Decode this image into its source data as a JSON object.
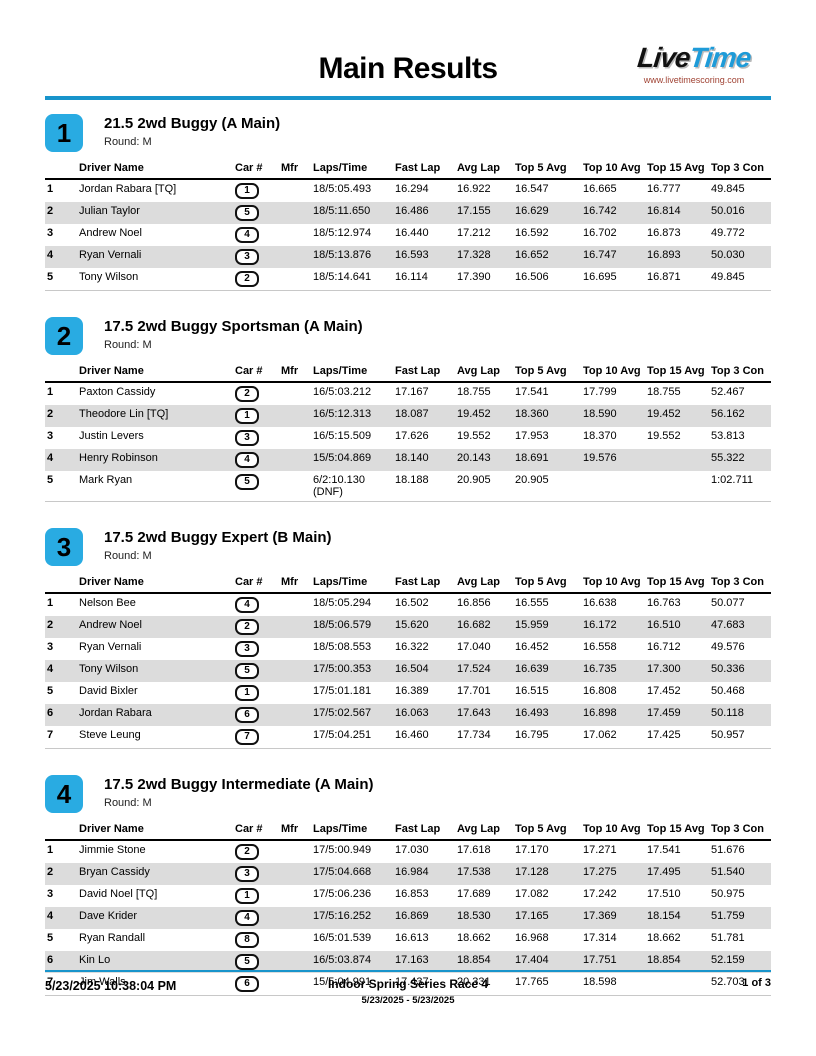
{
  "page": {
    "title": "Main Results",
    "logo": {
      "live": "Live",
      "time": "Time",
      "url": "www.livetimescoring.com"
    },
    "footer": {
      "timestamp": "5/23/2025 10:38:04 PM",
      "event": "Indoor Spring Series Race 4",
      "dates": "5/23/2025 - 5/23/2025",
      "page_number": "1 of 3"
    },
    "colors": {
      "accent_blue": "#1894CB",
      "badge_cyan": "#29ABE2",
      "row_stripe": "#DCDCDC",
      "logo_blue": "#1E9BD8",
      "logo_url_red": "#A04334"
    }
  },
  "columns": [
    "Driver Name",
    "Car #",
    "Mfr",
    "Laps/Time",
    "Fast Lap",
    "Avg Lap",
    "Top 5 Avg",
    "Top 10 Avg",
    "Top 15 Avg",
    "Top 3 Con"
  ],
  "sections": [
    {
      "number": "1",
      "title": "21.5 2wd Buggy (A Main)",
      "round": "Round: M",
      "rows": [
        {
          "pos": "1",
          "driver": "Jordan Rabara [TQ]",
          "car": "1",
          "mfr": "",
          "laps": "18/5:05.493",
          "note": "",
          "fast": "16.294",
          "avg": "16.922",
          "top5": "16.547",
          "top10": "16.665",
          "top15": "16.777",
          "top3": "49.845"
        },
        {
          "pos": "2",
          "driver": "Julian Taylor",
          "car": "5",
          "mfr": "",
          "laps": "18/5:11.650",
          "note": "",
          "fast": "16.486",
          "avg": "17.155",
          "top5": "16.629",
          "top10": "16.742",
          "top15": "16.814",
          "top3": "50.016"
        },
        {
          "pos": "3",
          "driver": "Andrew Noel",
          "car": "4",
          "mfr": "",
          "laps": "18/5:12.974",
          "note": "",
          "fast": "16.440",
          "avg": "17.212",
          "top5": "16.592",
          "top10": "16.702",
          "top15": "16.873",
          "top3": "49.772"
        },
        {
          "pos": "4",
          "driver": "Ryan Vernali",
          "car": "3",
          "mfr": "",
          "laps": "18/5:13.876",
          "note": "",
          "fast": "16.593",
          "avg": "17.328",
          "top5": "16.652",
          "top10": "16.747",
          "top15": "16.893",
          "top3": "50.030"
        },
        {
          "pos": "5",
          "driver": "Tony Wilson",
          "car": "2",
          "mfr": "",
          "laps": "18/5:14.641",
          "note": "",
          "fast": "16.114",
          "avg": "17.390",
          "top5": "16.506",
          "top10": "16.695",
          "top15": "16.871",
          "top3": "49.845"
        }
      ]
    },
    {
      "number": "2",
      "title": "17.5 2wd Buggy Sportsman  (A Main)",
      "round": "Round: M",
      "rows": [
        {
          "pos": "1",
          "driver": "Paxton Cassidy",
          "car": "2",
          "mfr": "",
          "laps": "16/5:03.212",
          "note": "",
          "fast": "17.167",
          "avg": "18.755",
          "top5": "17.541",
          "top10": "17.799",
          "top15": "18.755",
          "top3": "52.467"
        },
        {
          "pos": "2",
          "driver": "Theodore Lin [TQ]",
          "car": "1",
          "mfr": "",
          "laps": "16/5:12.313",
          "note": "",
          "fast": "18.087",
          "avg": "19.452",
          "top5": "18.360",
          "top10": "18.590",
          "top15": "19.452",
          "top3": "56.162"
        },
        {
          "pos": "3",
          "driver": "Justin Levers",
          "car": "3",
          "mfr": "",
          "laps": "16/5:15.509",
          "note": "",
          "fast": "17.626",
          "avg": "19.552",
          "top5": "17.953",
          "top10": "18.370",
          "top15": "19.552",
          "top3": "53.813"
        },
        {
          "pos": "4",
          "driver": "Henry Robinson",
          "car": "4",
          "mfr": "",
          "laps": "15/5:04.869",
          "note": "",
          "fast": "18.140",
          "avg": "20.143",
          "top5": "18.691",
          "top10": "19.576",
          "top15": "",
          "top3": "55.322"
        },
        {
          "pos": "5",
          "driver": "Mark Ryan",
          "car": "5",
          "mfr": "",
          "laps": "6/2:10.130",
          "note": "(DNF)",
          "fast": "18.188",
          "avg": "20.905",
          "top5": "20.905",
          "top10": "",
          "top15": "",
          "top3": "1:02.711"
        }
      ]
    },
    {
      "number": "3",
      "title": "17.5 2wd Buggy Expert (B Main)",
      "round": "Round: M",
      "rows": [
        {
          "pos": "1",
          "driver": "Nelson Bee",
          "car": "4",
          "mfr": "",
          "laps": "18/5:05.294",
          "note": "",
          "fast": "16.502",
          "avg": "16.856",
          "top5": "16.555",
          "top10": "16.638",
          "top15": "16.763",
          "top3": "50.077"
        },
        {
          "pos": "2",
          "driver": "Andrew Noel",
          "car": "2",
          "mfr": "",
          "laps": "18/5:06.579",
          "note": "",
          "fast": "15.620",
          "avg": "16.682",
          "top5": "15.959",
          "top10": "16.172",
          "top15": "16.510",
          "top3": "47.683"
        },
        {
          "pos": "3",
          "driver": "Ryan Vernali",
          "car": "3",
          "mfr": "",
          "laps": "18/5:08.553",
          "note": "",
          "fast": "16.322",
          "avg": "17.040",
          "top5": "16.452",
          "top10": "16.558",
          "top15": "16.712",
          "top3": "49.576"
        },
        {
          "pos": "4",
          "driver": "Tony Wilson",
          "car": "5",
          "mfr": "",
          "laps": "17/5:00.353",
          "note": "",
          "fast": "16.504",
          "avg": "17.524",
          "top5": "16.639",
          "top10": "16.735",
          "top15": "17.300",
          "top3": "50.336"
        },
        {
          "pos": "5",
          "driver": "David Bixler",
          "car": "1",
          "mfr": "",
          "laps": "17/5:01.181",
          "note": "",
          "fast": "16.389",
          "avg": "17.701",
          "top5": "16.515",
          "top10": "16.808",
          "top15": "17.452",
          "top3": "50.468"
        },
        {
          "pos": "6",
          "driver": "Jordan Rabara",
          "car": "6",
          "mfr": "",
          "laps": "17/5:02.567",
          "note": "",
          "fast": "16.063",
          "avg": "17.643",
          "top5": "16.493",
          "top10": "16.898",
          "top15": "17.459",
          "top3": "50.118"
        },
        {
          "pos": "7",
          "driver": "Steve Leung",
          "car": "7",
          "mfr": "",
          "laps": "17/5:04.251",
          "note": "",
          "fast": "16.460",
          "avg": "17.734",
          "top5": "16.795",
          "top10": "17.062",
          "top15": "17.425",
          "top3": "50.957"
        }
      ]
    },
    {
      "number": "4",
      "title": "17.5 2wd Buggy Intermediate (A Main)",
      "round": "Round: M",
      "rows": [
        {
          "pos": "1",
          "driver": "Jimmie Stone",
          "car": "2",
          "mfr": "",
          "laps": "17/5:00.949",
          "note": "",
          "fast": "17.030",
          "avg": "17.618",
          "top5": "17.170",
          "top10": "17.271",
          "top15": "17.541",
          "top3": "51.676"
        },
        {
          "pos": "2",
          "driver": "Bryan Cassidy",
          "car": "3",
          "mfr": "",
          "laps": "17/5:04.668",
          "note": "",
          "fast": "16.984",
          "avg": "17.538",
          "top5": "17.128",
          "top10": "17.275",
          "top15": "17.495",
          "top3": "51.540"
        },
        {
          "pos": "3",
          "driver": "David Noel [TQ]",
          "car": "1",
          "mfr": "",
          "laps": "17/5:06.236",
          "note": "",
          "fast": "16.853",
          "avg": "17.689",
          "top5": "17.082",
          "top10": "17.242",
          "top15": "17.510",
          "top3": "50.975"
        },
        {
          "pos": "4",
          "driver": "Dave Krider",
          "car": "4",
          "mfr": "",
          "laps": "17/5:16.252",
          "note": "",
          "fast": "16.869",
          "avg": "18.530",
          "top5": "17.165",
          "top10": "17.369",
          "top15": "18.154",
          "top3": "51.759"
        },
        {
          "pos": "5",
          "driver": "Ryan Randall",
          "car": "8",
          "mfr": "",
          "laps": "16/5:01.539",
          "note": "",
          "fast": "16.613",
          "avg": "18.662",
          "top5": "16.968",
          "top10": "17.314",
          "top15": "18.662",
          "top3": "51.781"
        },
        {
          "pos": "6",
          "driver": "Kin Lo",
          "car": "5",
          "mfr": "",
          "laps": "16/5:03.874",
          "note": "",
          "fast": "17.163",
          "avg": "18.854",
          "top5": "17.404",
          "top10": "17.751",
          "top15": "18.854",
          "top3": "52.159"
        },
        {
          "pos": "7",
          "driver": "Jim Walls",
          "car": "6",
          "mfr": "",
          "laps": "15/5:04.991",
          "note": "",
          "fast": "17.437",
          "avg": "20.331",
          "top5": "17.765",
          "top10": "18.598",
          "top15": "",
          "top3": "52.703"
        }
      ]
    }
  ]
}
